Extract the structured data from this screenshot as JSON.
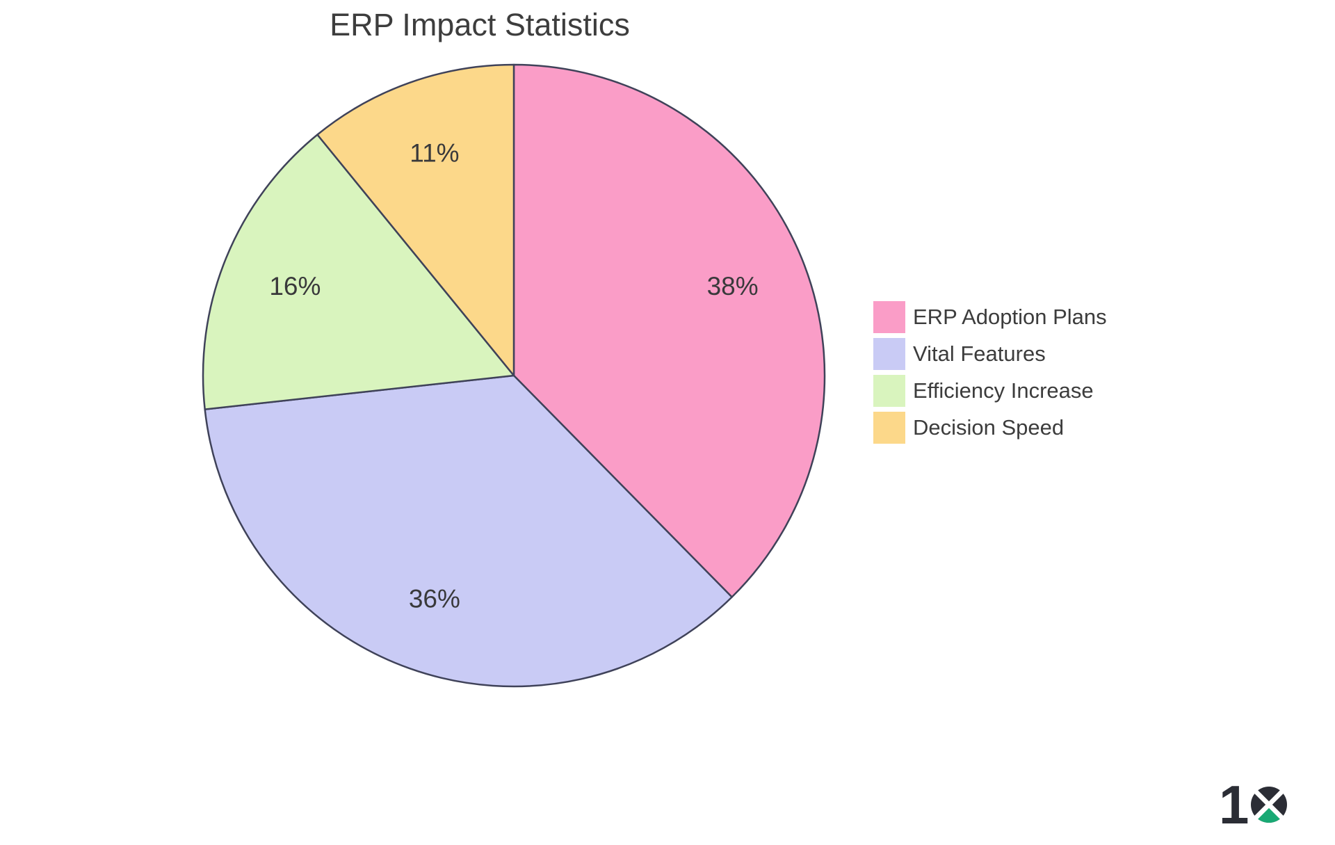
{
  "page": {
    "background_color": "#FFFFFF"
  },
  "chart_data": {
    "type": "pie",
    "title": "ERP Impact Statistics",
    "categories": [
      "ERP Adoption Plans",
      "Vital Features",
      "Efficiency Increase",
      "Decision Speed"
    ],
    "values": [
      38,
      36,
      16,
      11
    ],
    "segments": [
      {
        "label": "ERP Adoption Plans",
        "value": 38,
        "pct_label": "38%",
        "color": "#FA9DC7"
      },
      {
        "label": "Vital Features",
        "value": 36,
        "pct_label": "36%",
        "color": "#C9CBF5"
      },
      {
        "label": "Efficiency Increase",
        "value": 16,
        "pct_label": "16%",
        "color": "#D9F4BE"
      },
      {
        "label": "Decision Speed",
        "value": 11,
        "pct_label": "11%",
        "color": "#FCD88A"
      }
    ],
    "start_angle": "12-oclock",
    "direction": "clockwise",
    "legend_position": "right",
    "grid": "off",
    "slice_border_color": "#3F4259",
    "label_color": "#39393B",
    "title_color": "#3D3D3D",
    "legend_text_color": "#3C3C3C"
  },
  "logo": {
    "text": "1",
    "dark_color": "#2B2D35",
    "green_color": "#19A974",
    "x_stripe_color": "#FFFFFF"
  }
}
